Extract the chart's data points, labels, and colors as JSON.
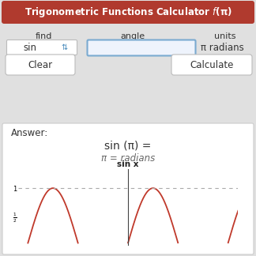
{
  "title_text": "Trigonometric Functions Calculator ",
  "title_italic": "f",
  "title_pi": "(π)",
  "title_bg": "#b03a2e",
  "title_color": "#ffffff",
  "bg_color": "#e0e0e0",
  "answer_bg": "#ffffff",
  "find_label": "find",
  "angle_label": "angle",
  "units_label": "units",
  "dropdown_text": "sin",
  "dropdown_bg": "#ffffff",
  "dropdown_border": "#bbbbbb",
  "input_bg": "#eef3fc",
  "input_border": "#7aaad0",
  "units_text": "π radians",
  "clear_text": "Clear",
  "calculate_text": "Calculate",
  "button_bg": "#ffffff",
  "button_border": "#bbbbbb",
  "answer_label": "Answer:",
  "formula_text": "sin (π) =",
  "subtext": "π = radians",
  "graph_title": "sin x",
  "graph_color": "#c0392b",
  "dashed_color": "#aaaaaa",
  "border_color": "#cccccc",
  "fig_bg": "#e0e0e0",
  "text_color": "#333333",
  "tick_label_1": "1",
  "tick_label_half": "$\\frac{1}{2}$"
}
